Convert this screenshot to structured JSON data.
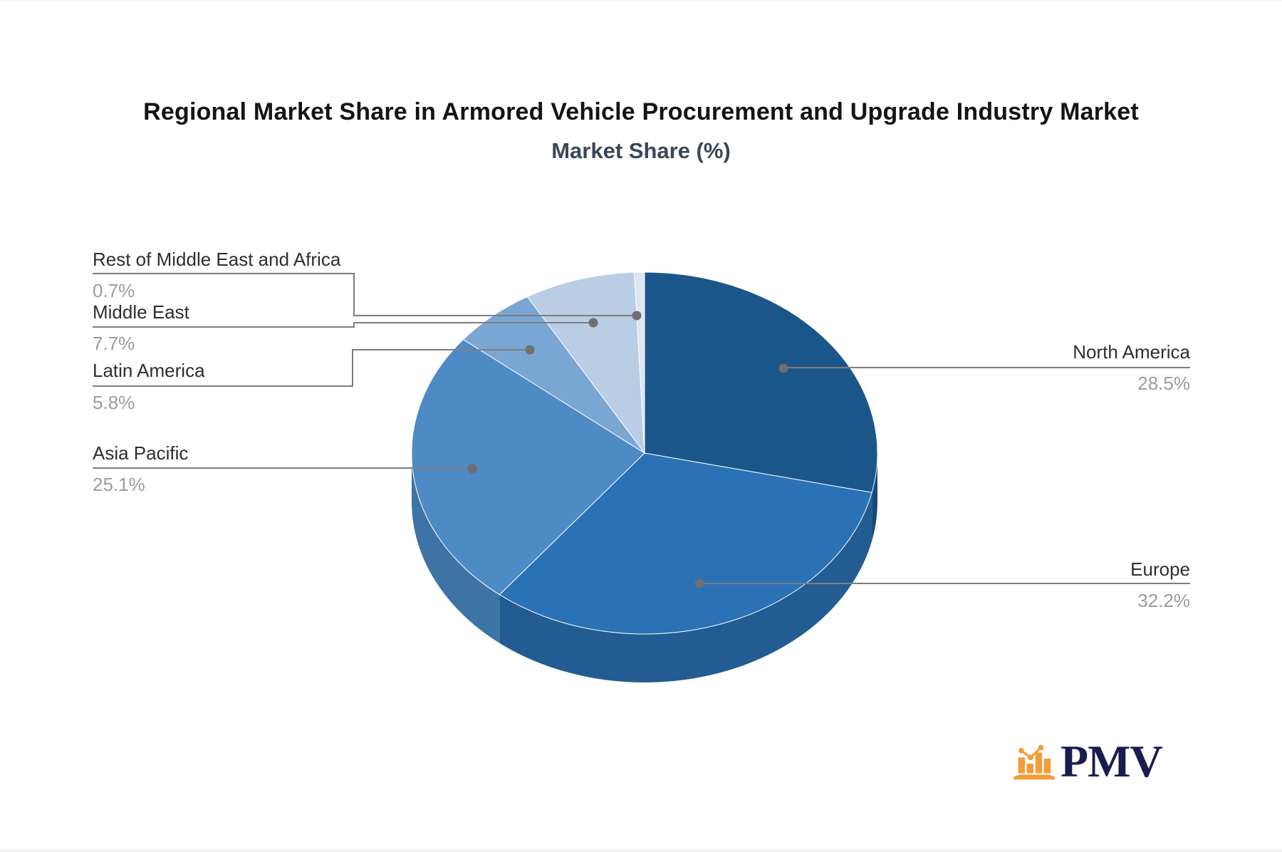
{
  "header": {
    "title": "Regional Market Share in Armored Vehicle Procurement and Upgrade Industry Market",
    "subtitle": "Market Share (%)"
  },
  "chart_data": {
    "type": "pie",
    "style": "3d",
    "unit": "%",
    "start_angle": "12-o-clock",
    "direction": "clockwise",
    "legend": "none",
    "connector_color": "#7e7e7e",
    "connector_dot_color": "#6f6f6f",
    "label_color": "#2e2e2e",
    "value_color": "#9c9c9c",
    "slices": [
      {
        "label": "North America",
        "value": 28.5,
        "pct_label": "28.5%",
        "color": "#1b568b",
        "side_color": "#164a78"
      },
      {
        "label": "Europe",
        "value": 32.2,
        "pct_label": "32.2%",
        "color": "#2a72b5",
        "side_color": "#225c92"
      },
      {
        "label": "Asia Pacific",
        "value": 25.1,
        "pct_label": "25.1%",
        "color": "#4e8ac3",
        "side_color": "#3e74a5"
      },
      {
        "label": "Latin America",
        "value": 5.8,
        "pct_label": "5.8%",
        "color": "#7aa6d3",
        "side_color": "#6a93c0"
      },
      {
        "label": "Middle East",
        "value": 7.7,
        "pct_label": "7.7%",
        "color": "#b9cee5",
        "side_color": "#a3b9d2"
      },
      {
        "label": "Rest of Middle East and Africa",
        "value": 0.7,
        "pct_label": "0.7%",
        "color": "#dce5f0",
        "side_color": "#c5cfdd"
      }
    ]
  },
  "logo": {
    "text": "PMV",
    "icon": "bar-chart-icon",
    "text_color": "#191c4e",
    "icon_color": "#f39d38"
  }
}
